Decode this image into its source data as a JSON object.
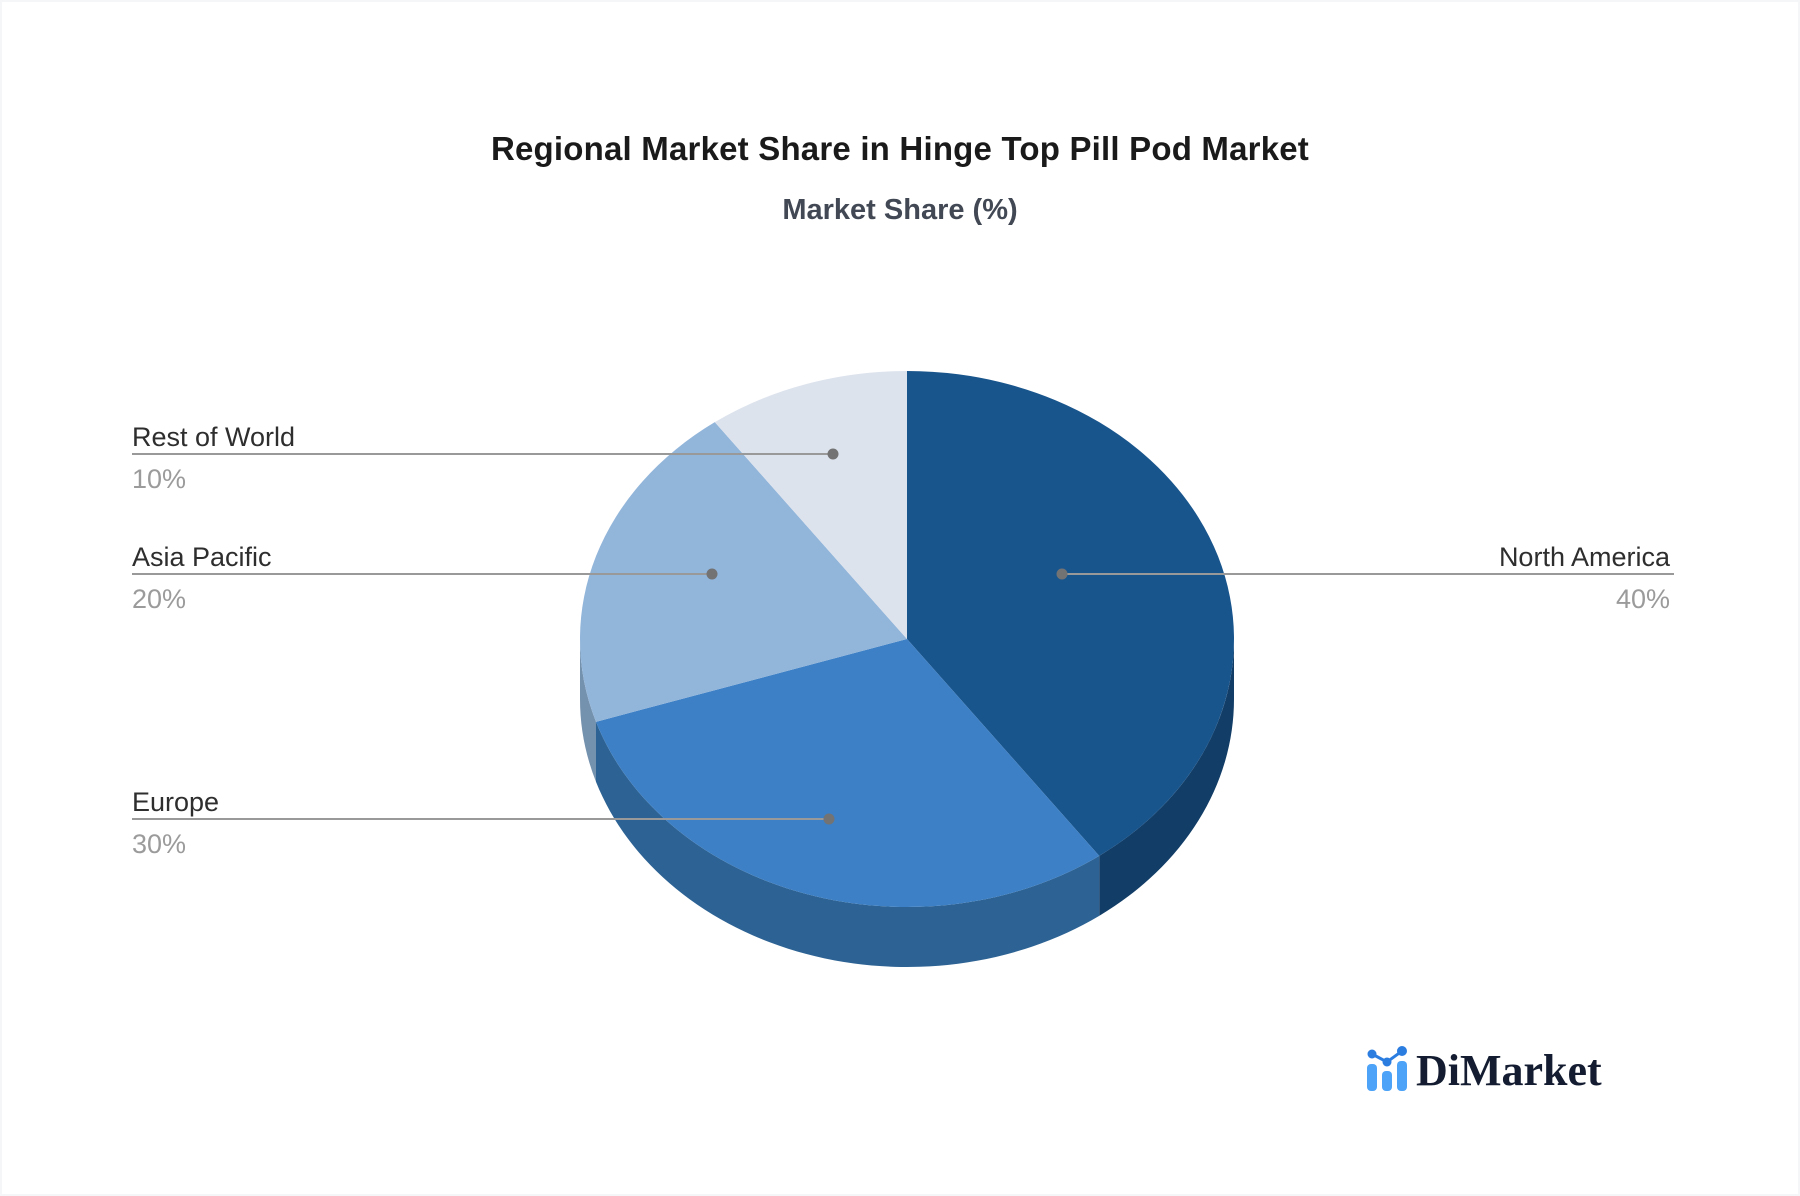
{
  "header": {
    "title": "Regional Market Share in Hinge Top Pill Pod Market",
    "subtitle": "Market Share (%)"
  },
  "chart_data": {
    "type": "pie",
    "style": "3d",
    "title": "Regional Market Share in Hinge Top Pill Pod Market",
    "subtitle": "Market Share (%)",
    "unit": "%",
    "direction": "clockwise",
    "start_angle_deg": 0,
    "legend": "none (callout labels with leader lines)",
    "slices": [
      {
        "label": "North America",
        "value": 40,
        "display": "40%",
        "color": "#19558d",
        "side_color": "#123d66"
      },
      {
        "label": "Europe",
        "value": 30,
        "display": "30%",
        "color": "#3d80c6",
        "side_color": "#2d6394"
      },
      {
        "label": "Asia Pacific",
        "value": 20,
        "display": "20%",
        "color": "#92b5da",
        "side_color": "#7491ad"
      },
      {
        "label": "Rest of World",
        "value": 10,
        "display": "10%",
        "color": "#dde3ed",
        "side_color": "#b6c0cf"
      }
    ],
    "label_color": "#2e2e2e",
    "value_color": "#9b9b9b",
    "leader_line_color": "#999999",
    "dot_color": "#737373"
  },
  "logo": {
    "text": "DiMarket",
    "icon": "bar-line-chart-icon",
    "bar_color": "#4da3f7",
    "accent_color": "#2b7de0",
    "text_color": "#131c30"
  }
}
